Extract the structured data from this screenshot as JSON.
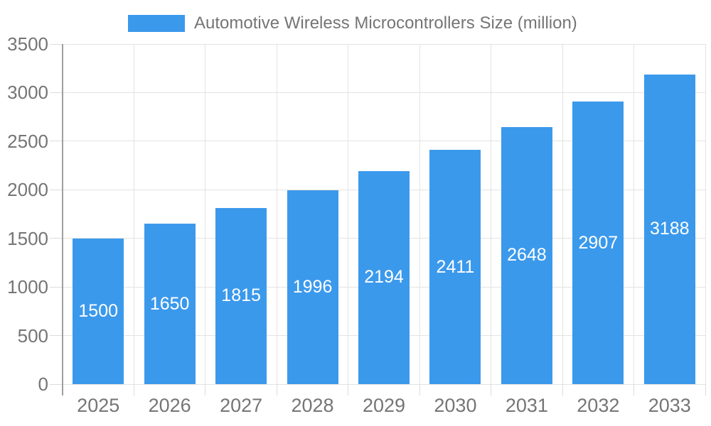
{
  "legend": {
    "label": "Automotive Wireless Microcontrollers Size (million)"
  },
  "colors": {
    "bar": "#3b99ec",
    "grid": "#e3e3e3",
    "tick": "#dcdcdc",
    "axis_line": "#9e9e9e",
    "text": "#757575",
    "value_label": "#ffffff",
    "background": "#ffffff"
  },
  "chart_data": {
    "type": "bar",
    "title": "Automotive Wireless Microcontrollers Size (million)",
    "categories": [
      "2025",
      "2026",
      "2027",
      "2028",
      "2029",
      "2030",
      "2031",
      "2032",
      "2033"
    ],
    "values": [
      1500,
      1650,
      1815,
      1996,
      2194,
      2411,
      2648,
      2907,
      3188
    ],
    "xlabel": "",
    "ylabel": "",
    "ylim": [
      0,
      3500
    ],
    "yticks": [
      0,
      500,
      1000,
      1500,
      2000,
      2500,
      3000,
      3500
    ],
    "grid": true,
    "legend_position": "top-center",
    "value_labels": "inside-center-white"
  }
}
